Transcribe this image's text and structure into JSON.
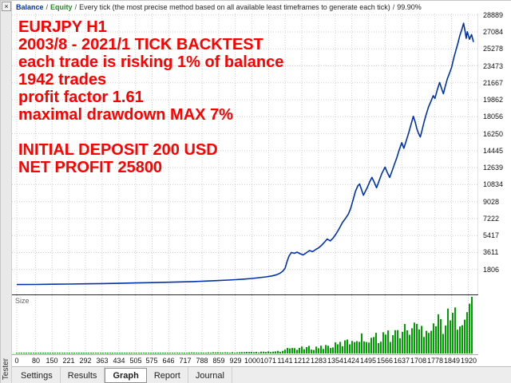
{
  "window": {
    "close_glyph": "×",
    "tester_caption": "Tester"
  },
  "legend": {
    "balance_label": "Balance",
    "equity_label": "Equity",
    "method_text": "Every tick (the most precise method based on all available least timeframes to generate each tick)",
    "quality_text": "99.90%",
    "sep": "/"
  },
  "annotation": {
    "lines": [
      "EURJPY H1",
      "2003/8 - 2021/1 TICK BACKTEST",
      "each trade is risking 1% of balance",
      "1942 trades",
      "profit factor 1.61",
      "maximal drawdown MAX 7%",
      "",
      "INITIAL DEPOSIT 200 USD",
      "NET PROFIT 25800"
    ]
  },
  "tabs": [
    {
      "label": "Settings",
      "active": false
    },
    {
      "label": "Results",
      "active": false
    },
    {
      "label": "Graph",
      "active": true
    },
    {
      "label": "Report",
      "active": false
    },
    {
      "label": "Journal",
      "active": false
    }
  ],
  "chart_data": {
    "type": "line",
    "title": "",
    "xlabel": "",
    "ylabel": "",
    "xlim": [
      0,
      1942
    ],
    "ylim": [
      0,
      29900
    ],
    "grid": true,
    "x_ticks": [
      0,
      80,
      150,
      221,
      292,
      363,
      434,
      505,
      575,
      646,
      717,
      788,
      859,
      929,
      1000,
      1071,
      1141,
      1212,
      1283,
      1354,
      1424,
      1495,
      1566,
      1637,
      1708,
      1778,
      1849,
      1920
    ],
    "y_ticks": [
      1806,
      3611,
      5417,
      7222,
      9028,
      10834,
      12639,
      14445,
      16250,
      18056,
      19862,
      21667,
      23473,
      25278,
      27084,
      28889
    ],
    "series": [
      {
        "name": "Balance",
        "color": "#0033aa",
        "points": [
          [
            0,
            200
          ],
          [
            80,
            215
          ],
          [
            150,
            235
          ],
          [
            221,
            255
          ],
          [
            292,
            280
          ],
          [
            363,
            305
          ],
          [
            434,
            335
          ],
          [
            505,
            370
          ],
          [
            575,
            405
          ],
          [
            646,
            450
          ],
          [
            700,
            485
          ],
          [
            750,
            520
          ],
          [
            800,
            565
          ],
          [
            850,
            620
          ],
          [
            900,
            680
          ],
          [
            929,
            720
          ],
          [
            960,
            770
          ],
          [
            1000,
            850
          ],
          [
            1030,
            930
          ],
          [
            1060,
            1020
          ],
          [
            1085,
            1120
          ],
          [
            1105,
            1250
          ],
          [
            1120,
            1420
          ],
          [
            1132,
            1650
          ],
          [
            1141,
            1950
          ],
          [
            1150,
            2700
          ],
          [
            1158,
            3250
          ],
          [
            1168,
            3620
          ],
          [
            1180,
            3520
          ],
          [
            1192,
            3650
          ],
          [
            1205,
            3480
          ],
          [
            1218,
            3350
          ],
          [
            1232,
            3600
          ],
          [
            1245,
            3820
          ],
          [
            1258,
            3700
          ],
          [
            1272,
            3950
          ],
          [
            1283,
            4100
          ],
          [
            1295,
            4350
          ],
          [
            1308,
            4700
          ],
          [
            1320,
            5050
          ],
          [
            1333,
            4850
          ],
          [
            1345,
            5150
          ],
          [
            1358,
            5600
          ],
          [
            1372,
            6200
          ],
          [
            1385,
            6800
          ],
          [
            1398,
            7250
          ],
          [
            1410,
            7700
          ],
          [
            1420,
            8300
          ],
          [
            1430,
            9200
          ],
          [
            1440,
            10100
          ],
          [
            1450,
            10700
          ],
          [
            1458,
            10900
          ],
          [
            1466,
            10300
          ],
          [
            1474,
            9700
          ],
          [
            1482,
            10100
          ],
          [
            1490,
            10500
          ],
          [
            1500,
            11100
          ],
          [
            1510,
            11600
          ],
          [
            1520,
            11100
          ],
          [
            1530,
            10500
          ],
          [
            1540,
            11200
          ],
          [
            1552,
            12000
          ],
          [
            1566,
            12700
          ],
          [
            1576,
            12100
          ],
          [
            1586,
            11600
          ],
          [
            1596,
            12300
          ],
          [
            1606,
            13000
          ],
          [
            1616,
            13700
          ],
          [
            1626,
            14500
          ],
          [
            1637,
            15300
          ],
          [
            1646,
            14700
          ],
          [
            1656,
            15500
          ],
          [
            1666,
            16300
          ],
          [
            1676,
            17200
          ],
          [
            1686,
            18100
          ],
          [
            1694,
            17500
          ],
          [
            1701,
            16800
          ],
          [
            1708,
            16300
          ],
          [
            1716,
            15900
          ],
          [
            1724,
            16700
          ],
          [
            1732,
            17500
          ],
          [
            1741,
            18300
          ],
          [
            1751,
            19100
          ],
          [
            1761,
            19700
          ],
          [
            1771,
            20300
          ],
          [
            1778,
            20000
          ],
          [
            1788,
            20900
          ],
          [
            1798,
            21700
          ],
          [
            1806,
            21100
          ],
          [
            1814,
            20500
          ],
          [
            1822,
            21300
          ],
          [
            1831,
            22100
          ],
          [
            1840,
            22700
          ],
          [
            1849,
            23300
          ],
          [
            1858,
            24300
          ],
          [
            1867,
            25100
          ],
          [
            1876,
            25900
          ],
          [
            1884,
            26700
          ],
          [
            1892,
            27300
          ],
          [
            1900,
            28000
          ],
          [
            1906,
            27200
          ],
          [
            1911,
            26400
          ],
          [
            1916,
            27100
          ],
          [
            1925,
            26300
          ],
          [
            1934,
            26800
          ],
          [
            1942,
            26000
          ]
        ]
      }
    ],
    "size_panel": {
      "label": "Size",
      "color": "#009f00"
    },
    "legend_position": "top",
    "summary": {
      "symbol_timeframe": "EURJPY H1",
      "period": "2003/8 - 2021/1",
      "risk_per_trade": "1% of balance",
      "trades": 1942,
      "profit_factor": 1.61,
      "max_drawdown_pct": 7,
      "initial_deposit_usd": 200,
      "net_profit_usd": 25800
    }
  }
}
